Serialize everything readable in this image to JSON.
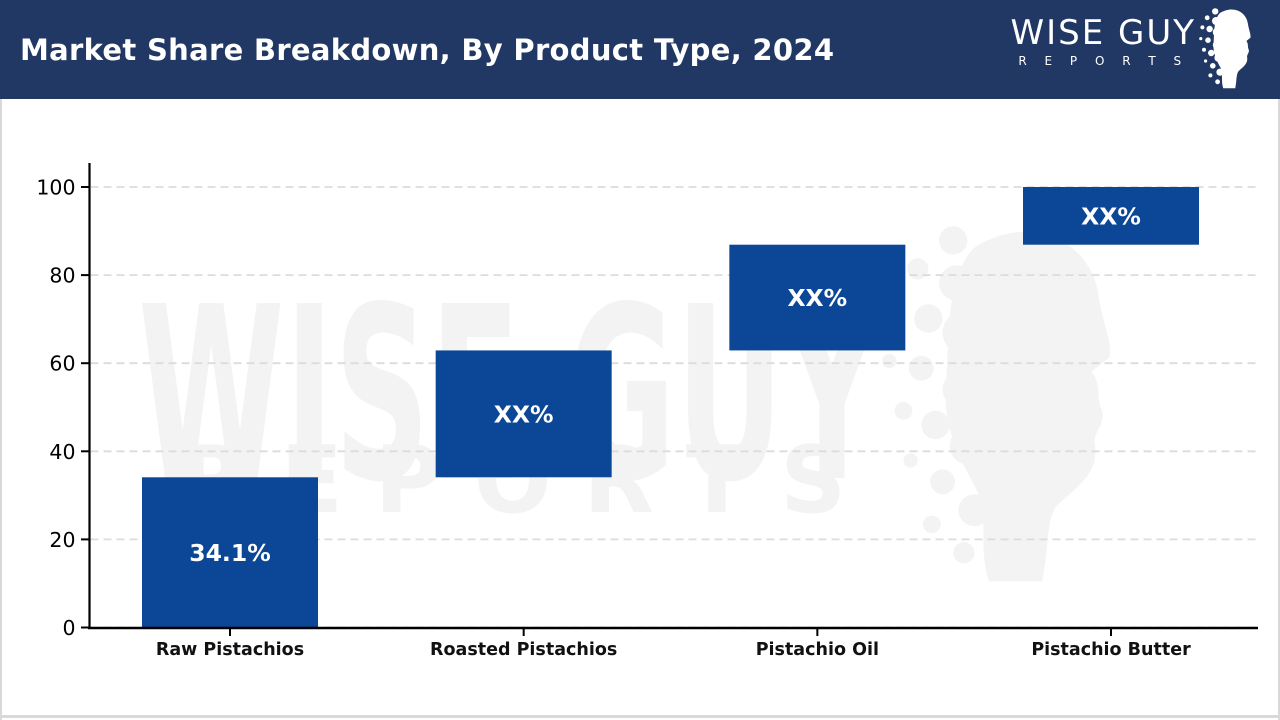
{
  "header": {
    "title": "Market Share Breakdown, By Product Type, 2024",
    "logo": {
      "line1": "WISE GUY",
      "line2": "R E P O R T S"
    }
  },
  "watermark": {
    "line1": "WISE GUY",
    "line2": "R E P O R T S"
  },
  "colors": {
    "header_bg": "#213764",
    "bar": "#0b4796",
    "bar_label": "#ffffff",
    "axis": "#000000",
    "tick_label": "#000000",
    "category_label": "#111111",
    "grid": "#dcdcdc",
    "watermark": "#f3f3f3"
  },
  "chart_data": {
    "type": "bar",
    "subtype": "waterfall",
    "title": "Market Share Breakdown, By Product Type, 2024",
    "categories": [
      "Raw Pistachios",
      "Roasted Pistachios",
      "Pistachio Oil",
      "Pistachio Butter"
    ],
    "segments": [
      {
        "category": "Raw Pistachios",
        "start": 0,
        "end": 34.1,
        "label": "34.1%"
      },
      {
        "category": "Roasted Pistachios",
        "start": 34.1,
        "end": 62.9,
        "label": "XX%"
      },
      {
        "category": "Pistachio Oil",
        "start": 62.9,
        "end": 86.9,
        "label": "XX%"
      },
      {
        "category": "Pistachio Butter",
        "start": 86.9,
        "end": 100,
        "label": "XX%"
      }
    ],
    "xlabel": "",
    "ylabel": "",
    "ylim": [
      0,
      100
    ],
    "yticks": [
      0,
      20,
      40,
      60,
      80,
      100
    ],
    "grid": true,
    "grid_style": "dashed",
    "legend": "none"
  }
}
